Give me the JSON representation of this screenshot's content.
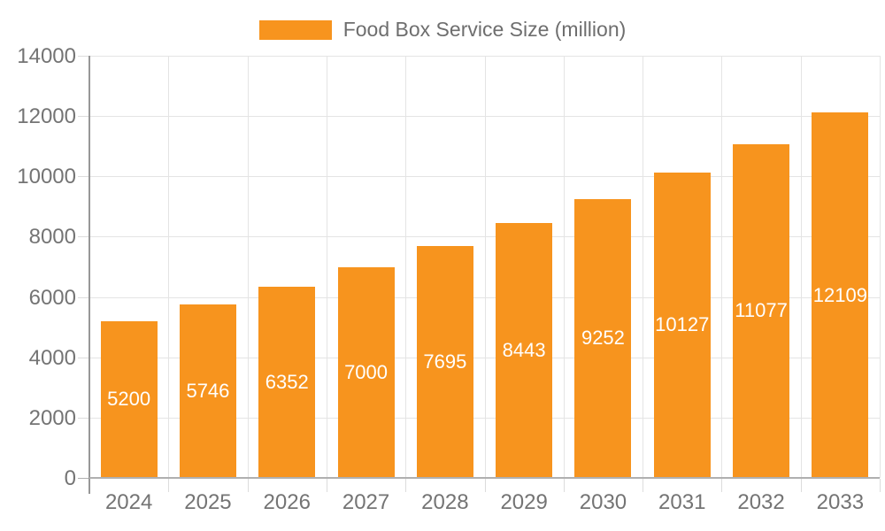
{
  "legend": {
    "label": "Food Box Service Size (million)"
  },
  "chart_data": {
    "type": "bar",
    "title": "Food Box Service Size (million)",
    "series_name": "Food Box Service Size (million)",
    "categories": [
      "2024",
      "2025",
      "2026",
      "2027",
      "2028",
      "2029",
      "2030",
      "2031",
      "2032",
      "2033"
    ],
    "values": [
      5200,
      5746,
      6352,
      7000,
      7695,
      8443,
      9252,
      10127,
      11077,
      12109
    ],
    "xlabel": "",
    "ylabel": "",
    "ylim": [
      0,
      14000
    ],
    "yticks": [
      0,
      2000,
      4000,
      6000,
      8000,
      10000,
      12000,
      14000
    ],
    "grid": true,
    "legend_position": "top-center",
    "bar_color": "#F7941E",
    "value_label_color": "#FFFFFF",
    "axis_label_color": "#747474",
    "gridline_color": "#E4E4E4",
    "value_labels_inside": true
  }
}
